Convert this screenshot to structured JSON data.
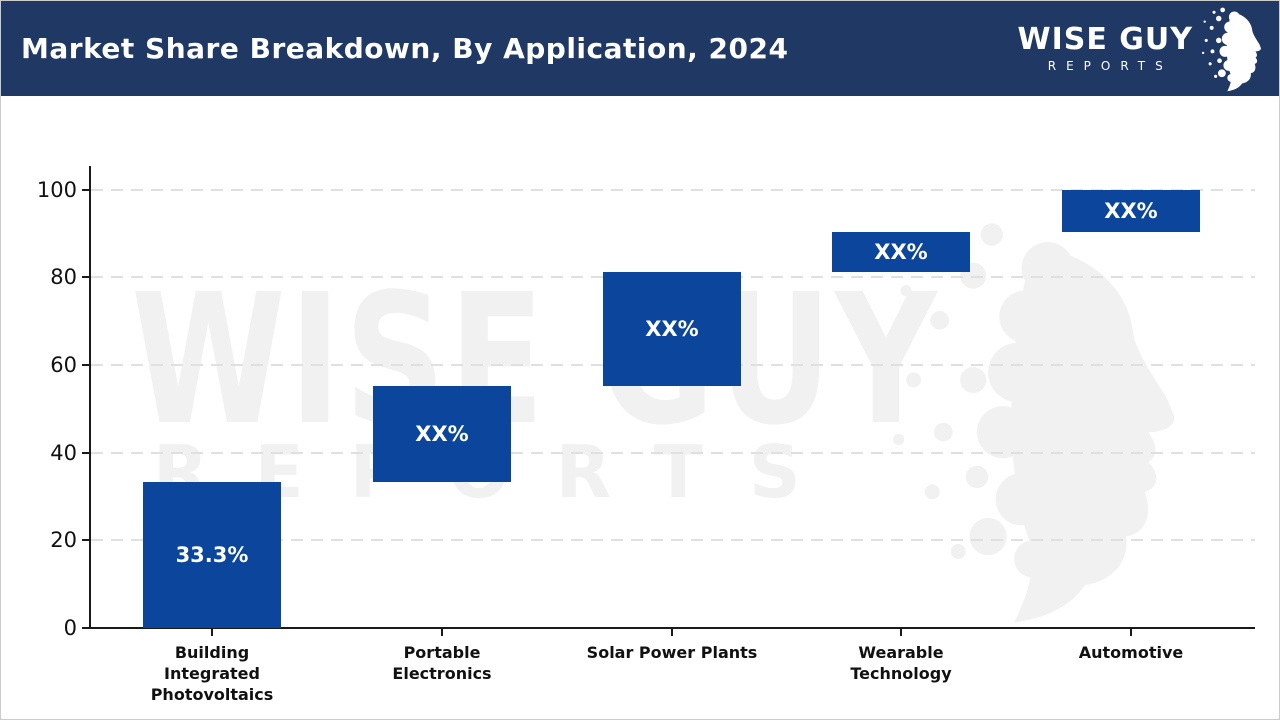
{
  "header": {
    "title": "Market Share Breakdown, By Application, 2024",
    "logo": {
      "line1": "WISE GUY",
      "line2": "REPORTS"
    }
  },
  "watermark": {
    "line1": "WISE GUY",
    "line2": "REPORTS"
  },
  "colors": {
    "header_bg": "#1f3864",
    "bar_blue": "#0b459c",
    "grid_gray": "#e0e0e0",
    "watermark_gray": "#f1f1f1"
  },
  "chart_data": {
    "type": "bar",
    "subtype": "waterfall",
    "title": "Market Share Breakdown, By Application, 2024",
    "categories": [
      "Building\nIntegrated\nPhotovoltaics",
      "Portable\nElectronics",
      "Solar Power Plants",
      "Wearable\nTechnology",
      "Automotive"
    ],
    "segments": [
      {
        "category": "Building Integrated Photovoltaics",
        "start": 0,
        "end": 33.3,
        "label": "33.3%"
      },
      {
        "category": "Portable Electronics",
        "start": 33.3,
        "end": 55.3,
        "label": "XX%"
      },
      {
        "category": "Solar Power Plants",
        "start": 55.3,
        "end": 81.2,
        "label": "XX%"
      },
      {
        "category": "Wearable Technology",
        "start": 81.2,
        "end": 90.2,
        "label": "XX%"
      },
      {
        "category": "Automotive",
        "start": 90.2,
        "end": 100,
        "label": "XX%"
      }
    ],
    "values_shown": [
      33.3,
      null,
      null,
      null,
      null
    ],
    "yticks": [
      0,
      20,
      40,
      60,
      80,
      100
    ],
    "ylim": [
      0,
      105
    ],
    "xlabel": "",
    "ylabel": "",
    "grid": "dashed-horizontal",
    "legend": "none",
    "bar_color": "#0b459c",
    "bar_label_color": "#ffffff"
  }
}
